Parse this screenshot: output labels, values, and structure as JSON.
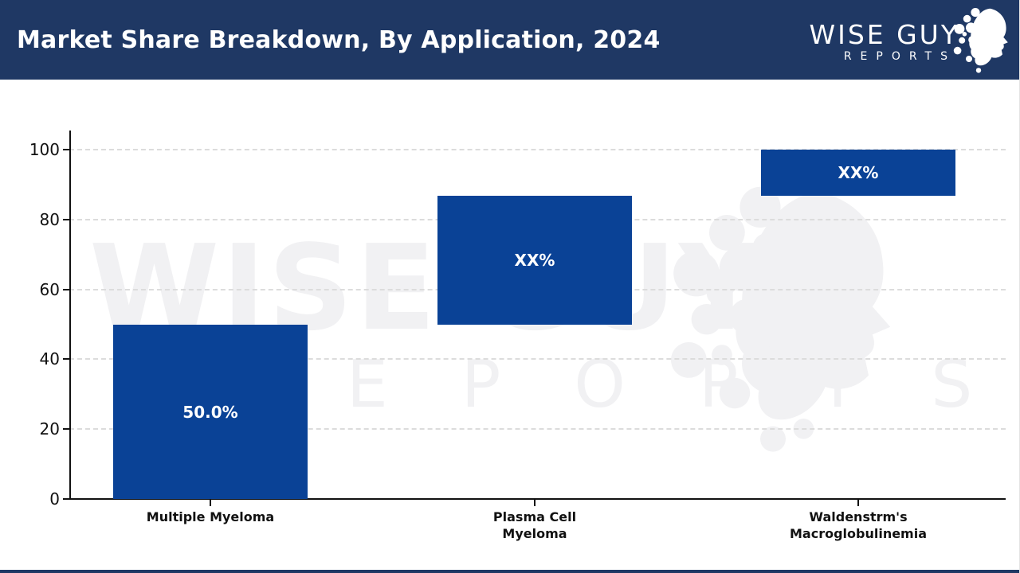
{
  "header": {
    "title": "Market Share Breakdown, By Application, 2024",
    "logo": {
      "wordmark": "WISE GUY",
      "subword": "REPORTS"
    }
  },
  "watermark": {
    "wordmark": "WISE GUY",
    "subword": "R E P O R T S"
  },
  "chart_data": {
    "type": "bar",
    "subtype": "waterfall-stacked-range",
    "title": "Market Share Breakdown, By Application, 2024",
    "xlabel": "",
    "ylabel": "",
    "ylim": [
      0,
      105
    ],
    "yticks": [
      0,
      20,
      40,
      60,
      80,
      100
    ],
    "grid": "horizontal-dashed",
    "legend": "none",
    "categories": [
      [
        "Multiple Myeloma"
      ],
      [
        "Plasma Cell",
        "Myeloma"
      ],
      [
        "Waldenstrm's",
        "Macroglobulinemia"
      ]
    ],
    "segments": [
      {
        "category": "Multiple Myeloma",
        "from": 0,
        "to": 50,
        "label": "50.0%"
      },
      {
        "category": "Plasma Cell Myeloma",
        "from": 50,
        "to": 86.7,
        "label": "XX%"
      },
      {
        "category": "Waldenstrm's Macroglobulinemia",
        "from": 86.7,
        "to": 100,
        "label": "XX%"
      }
    ]
  },
  "colors": {
    "header_bg": "#1f3864",
    "footer_bg": "#1f3864",
    "bar": "#0a4296",
    "bar_label": "#ffffff",
    "axis": "#111111",
    "grid": "#dcdcdc",
    "tick_label": "#111111",
    "watermark": "#f1f1f3"
  }
}
